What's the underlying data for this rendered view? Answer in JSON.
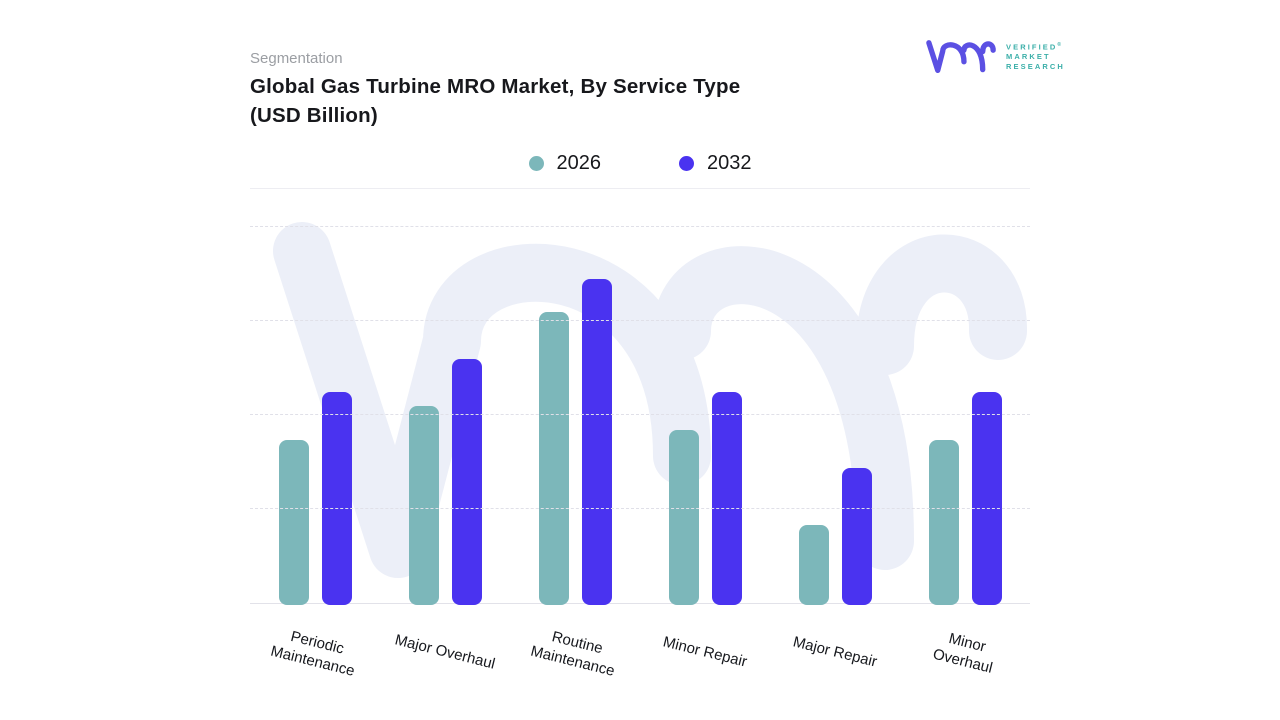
{
  "header": {
    "eyebrow": "Segmentation",
    "title_line1": "Global Gas Turbine MRO Market, By Service Type",
    "title_line2": "(USD Billion)"
  },
  "brand": {
    "lines": [
      "VERIFIED",
      "MARKET",
      "RESEARCH"
    ],
    "registered": "®",
    "mark_color": "#5B50E3",
    "text_color": "#3BAFA9"
  },
  "legend": {
    "items": [
      {
        "label": "2026",
        "color": "#7CB7BA"
      },
      {
        "label": "2032",
        "color": "#4A33F0"
      }
    ]
  },
  "chart_data": {
    "type": "bar",
    "title": "Global Gas Turbine MRO Market, By Service Type (USD Billion)",
    "categories": [
      "Periodic Maintenance",
      "Major Overhaul",
      "Routine Maintenance",
      "Minor Repair",
      "Major Repair",
      "Minor Overhaul"
    ],
    "series": [
      {
        "name": "2026",
        "color": "#7CB7BA",
        "values": [
          1.75,
          2.1,
          3.1,
          1.85,
          0.85,
          1.75
        ]
      },
      {
        "name": "2032",
        "color": "#4A33F0",
        "values": [
          2.25,
          2.6,
          3.45,
          2.25,
          1.45,
          2.25
        ]
      }
    ],
    "xlabel": "",
    "ylabel": "USD Billion",
    "ylim": [
      0,
      4.4
    ],
    "y_tick_labels": "none",
    "gridline_step": 1,
    "grid": "horizontal-dashed",
    "legend_position": "top-center",
    "bar_corner_radius": 8
  },
  "watermark": {
    "name": "vmr-logo-watermark",
    "color": "#ECEFF8"
  }
}
